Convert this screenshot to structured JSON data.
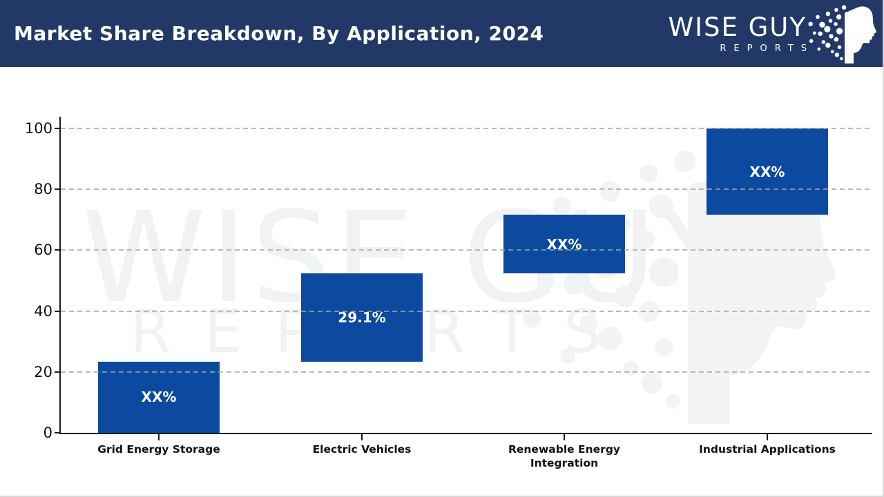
{
  "header": {
    "title": "Market Share Breakdown, By Application, 2024",
    "logo": {
      "wordmark": "WISE GUY",
      "subtext": "REPORTS"
    }
  },
  "watermark": {
    "wordmark": "WISE GUY",
    "subtext": "REPORTS"
  },
  "chart_data": {
    "type": "bar",
    "subtype": "waterfall-floating-segments",
    "title": "Market Share Breakdown, By Application, 2024",
    "categories": [
      "Grid Energy Storage",
      "Electric Vehicles",
      "Renewable Energy Integration",
      "Industrial Applications"
    ],
    "segments": [
      {
        "category": "Grid Energy Storage",
        "start": 0,
        "end": 23.4,
        "label": "XX%"
      },
      {
        "category": "Electric Vehicles",
        "start": 23.4,
        "end": 52.4,
        "label": "29.1%"
      },
      {
        "category": "Renewable Energy Integration",
        "start": 52.4,
        "end": 71.6,
        "label": "XX%"
      },
      {
        "category": "Industrial Applications",
        "start": 71.6,
        "end": 100,
        "label": "XX%"
      }
    ],
    "yticks": [
      0,
      20,
      40,
      60,
      80,
      100
    ],
    "ylim": [
      0,
      105
    ],
    "xlabel": "",
    "ylabel": "",
    "grid": "horizontal-dashed-over-bars",
    "legend": "none",
    "bar_color": "#0c4aa0",
    "header_color": "#223968",
    "gridline_color": "#c4c4c4",
    "watermark_color": "#f1f2f4"
  }
}
